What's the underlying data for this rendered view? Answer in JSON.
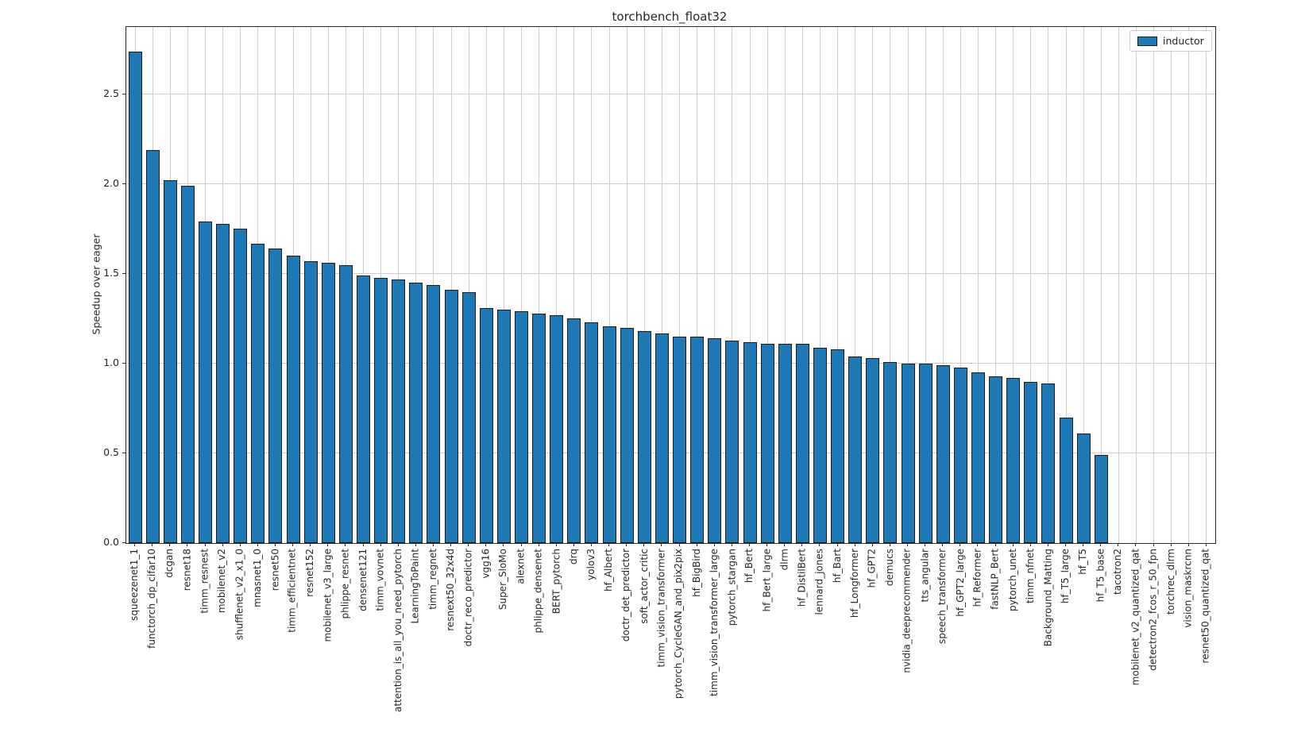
{
  "chart_data": {
    "type": "bar",
    "title": "torchbench_float32",
    "xlabel": "",
    "ylabel": "Speedup over eager",
    "series_name": "inductor",
    "legend_position": "upper right",
    "grid": true,
    "ylim": [
      0,
      2.876
    ],
    "yticks": [
      0.0,
      0.5,
      1.0,
      1.5,
      2.0,
      2.5
    ],
    "bar_color": "#1f77b4",
    "bar_edge_color": "#1c1c1c",
    "grid_color": "#cdcdcd",
    "categories": [
      "squeezenet1_1",
      "functorch_dp_cifar10",
      "dcgan",
      "resnet18",
      "timm_resnest",
      "mobilenet_v2",
      "shufflenet_v2_x1_0",
      "mnasnet1_0",
      "resnet50",
      "timm_efficientnet",
      "resnet152",
      "mobilenet_v3_large",
      "phlippe_resnet",
      "densenet121",
      "timm_vovnet",
      "attention_is_all_you_need_pytorch",
      "LearningToPaint",
      "timm_regnet",
      "resnext50_32x4d",
      "doctr_reco_predictor",
      "vgg16",
      "Super_SloMo",
      "alexnet",
      "phlippe_densenet",
      "BERT_pytorch",
      "drq",
      "yolov3",
      "hf_Albert",
      "doctr_det_predictor",
      "soft_actor_critic",
      "timm_vision_transformer",
      "pytorch_CycleGAN_and_pix2pix",
      "hf_BigBird",
      "timm_vision_transformer_large",
      "pytorch_stargan",
      "hf_Bert",
      "hf_Bert_large",
      "dlrm",
      "hf_DistilBert",
      "lennard_jones",
      "hf_Bart",
      "hf_Longformer",
      "hf_GPT2",
      "demucs",
      "nvidia_deeprecommender",
      "tts_angular",
      "speech_transformer",
      "hf_GPT2_large",
      "hf_Reformer",
      "fastNLP_Bert",
      "pytorch_unet",
      "timm_nfnet",
      "Background_Matting",
      "hf_T5_large",
      "hf_T5",
      "hf_T5_base",
      "tacotron2",
      "mobilenet_v2_quantized_qat",
      "detectron2_fcos_r_50_fpn",
      "torchrec_dlrm",
      "vision_maskrcnn",
      "resnet50_quantized_qat"
    ],
    "values": [
      2.74,
      2.19,
      2.02,
      1.99,
      1.79,
      1.78,
      1.75,
      1.67,
      1.64,
      1.6,
      1.57,
      1.56,
      1.55,
      1.49,
      1.48,
      1.47,
      1.45,
      1.44,
      1.41,
      1.4,
      1.31,
      1.3,
      1.29,
      1.28,
      1.27,
      1.25,
      1.23,
      1.21,
      1.2,
      1.18,
      1.17,
      1.15,
      1.15,
      1.14,
      1.13,
      1.12,
      1.11,
      1.11,
      1.11,
      1.09,
      1.08,
      1.04,
      1.03,
      1.01,
      1.0,
      1.0,
      0.99,
      0.98,
      0.95,
      0.93,
      0.92,
      0.9,
      0.89,
      0.7,
      0.61,
      0.49,
      0,
      0,
      0,
      0,
      0,
      0
    ]
  }
}
